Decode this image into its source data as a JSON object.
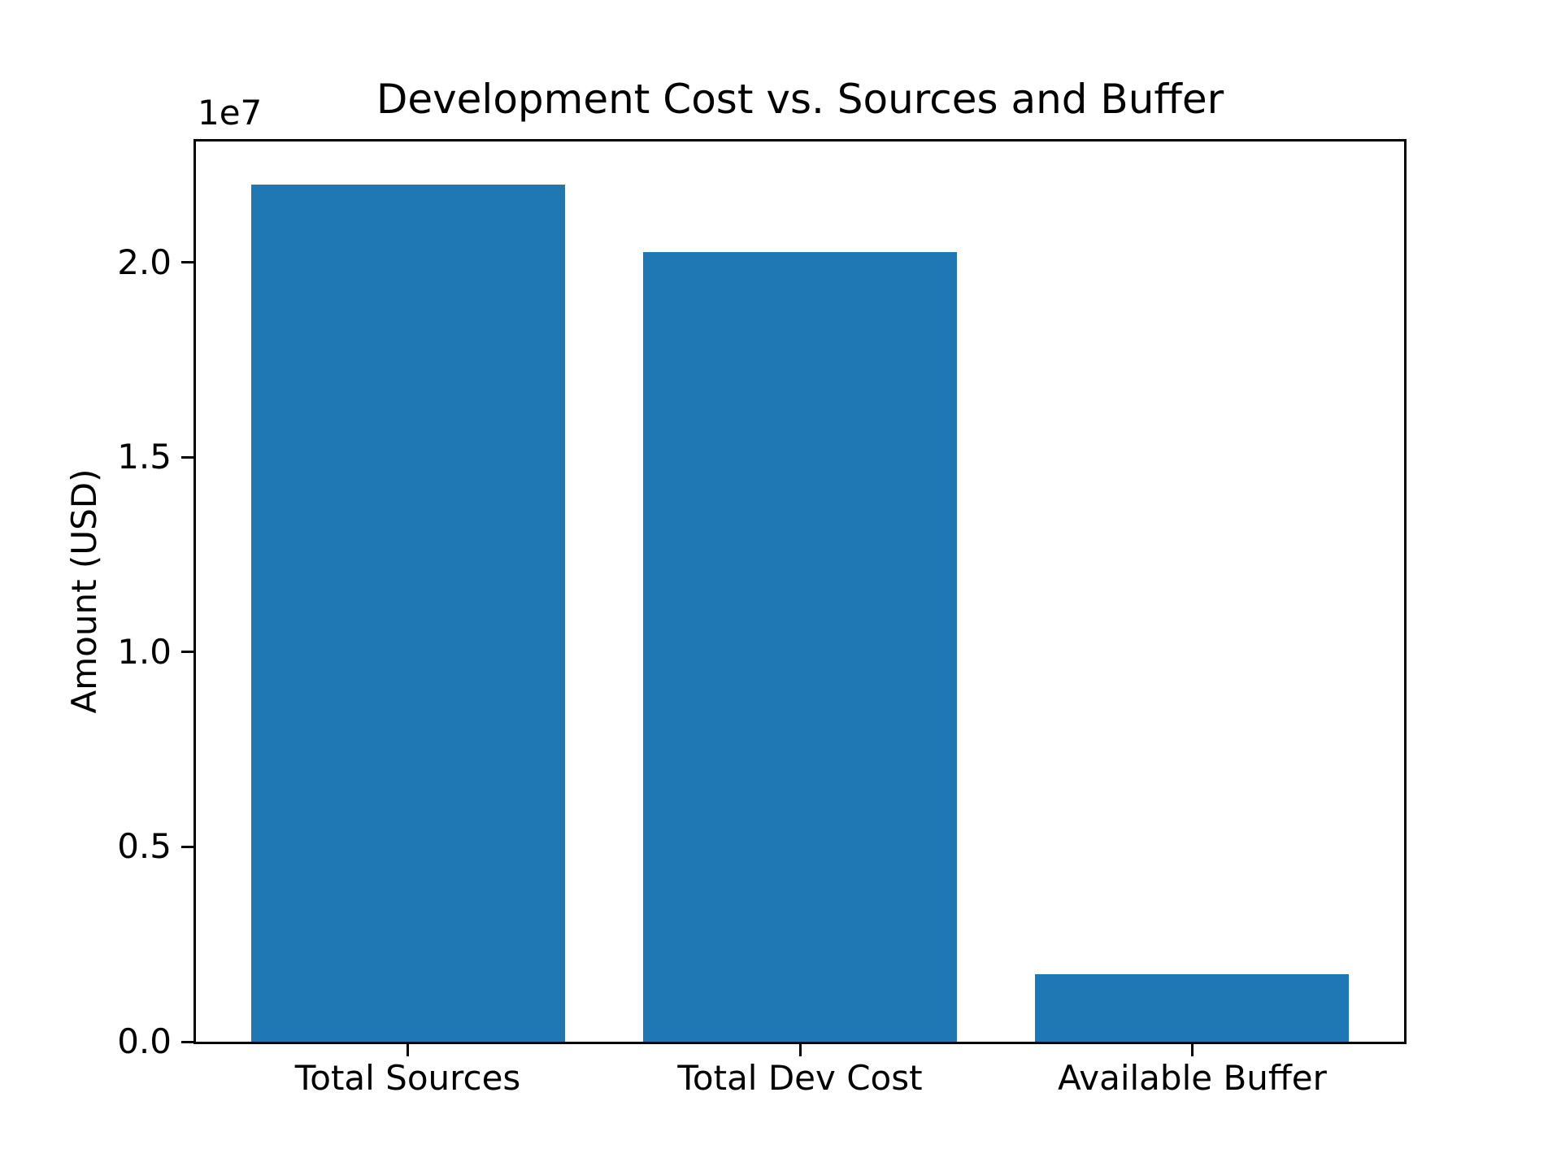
{
  "figure": {
    "background_color": "#ffffff",
    "text_color": "#000000"
  },
  "chart_data": {
    "type": "bar",
    "title": "Development Cost vs. Sources and Buffer",
    "xlabel": "",
    "ylabel": "Amount (USD)",
    "y_offset_label": "1e7",
    "categories": [
      "Total Sources",
      "Total Dev Cost",
      "Available Buffer"
    ],
    "values": [
      22000000,
      20270000,
      1730000
    ],
    "bar_color": "#1f77b4",
    "bar_width": 0.8,
    "xlim": [
      -0.54,
      2.54
    ],
    "ylim": [
      0,
      23100000
    ],
    "yticks": [
      0,
      5000000,
      10000000,
      15000000,
      20000000
    ],
    "ytick_labels": [
      "0.0",
      "0.5",
      "1.0",
      "1.5",
      "2.0"
    ],
    "grid": false,
    "legend": false
  }
}
